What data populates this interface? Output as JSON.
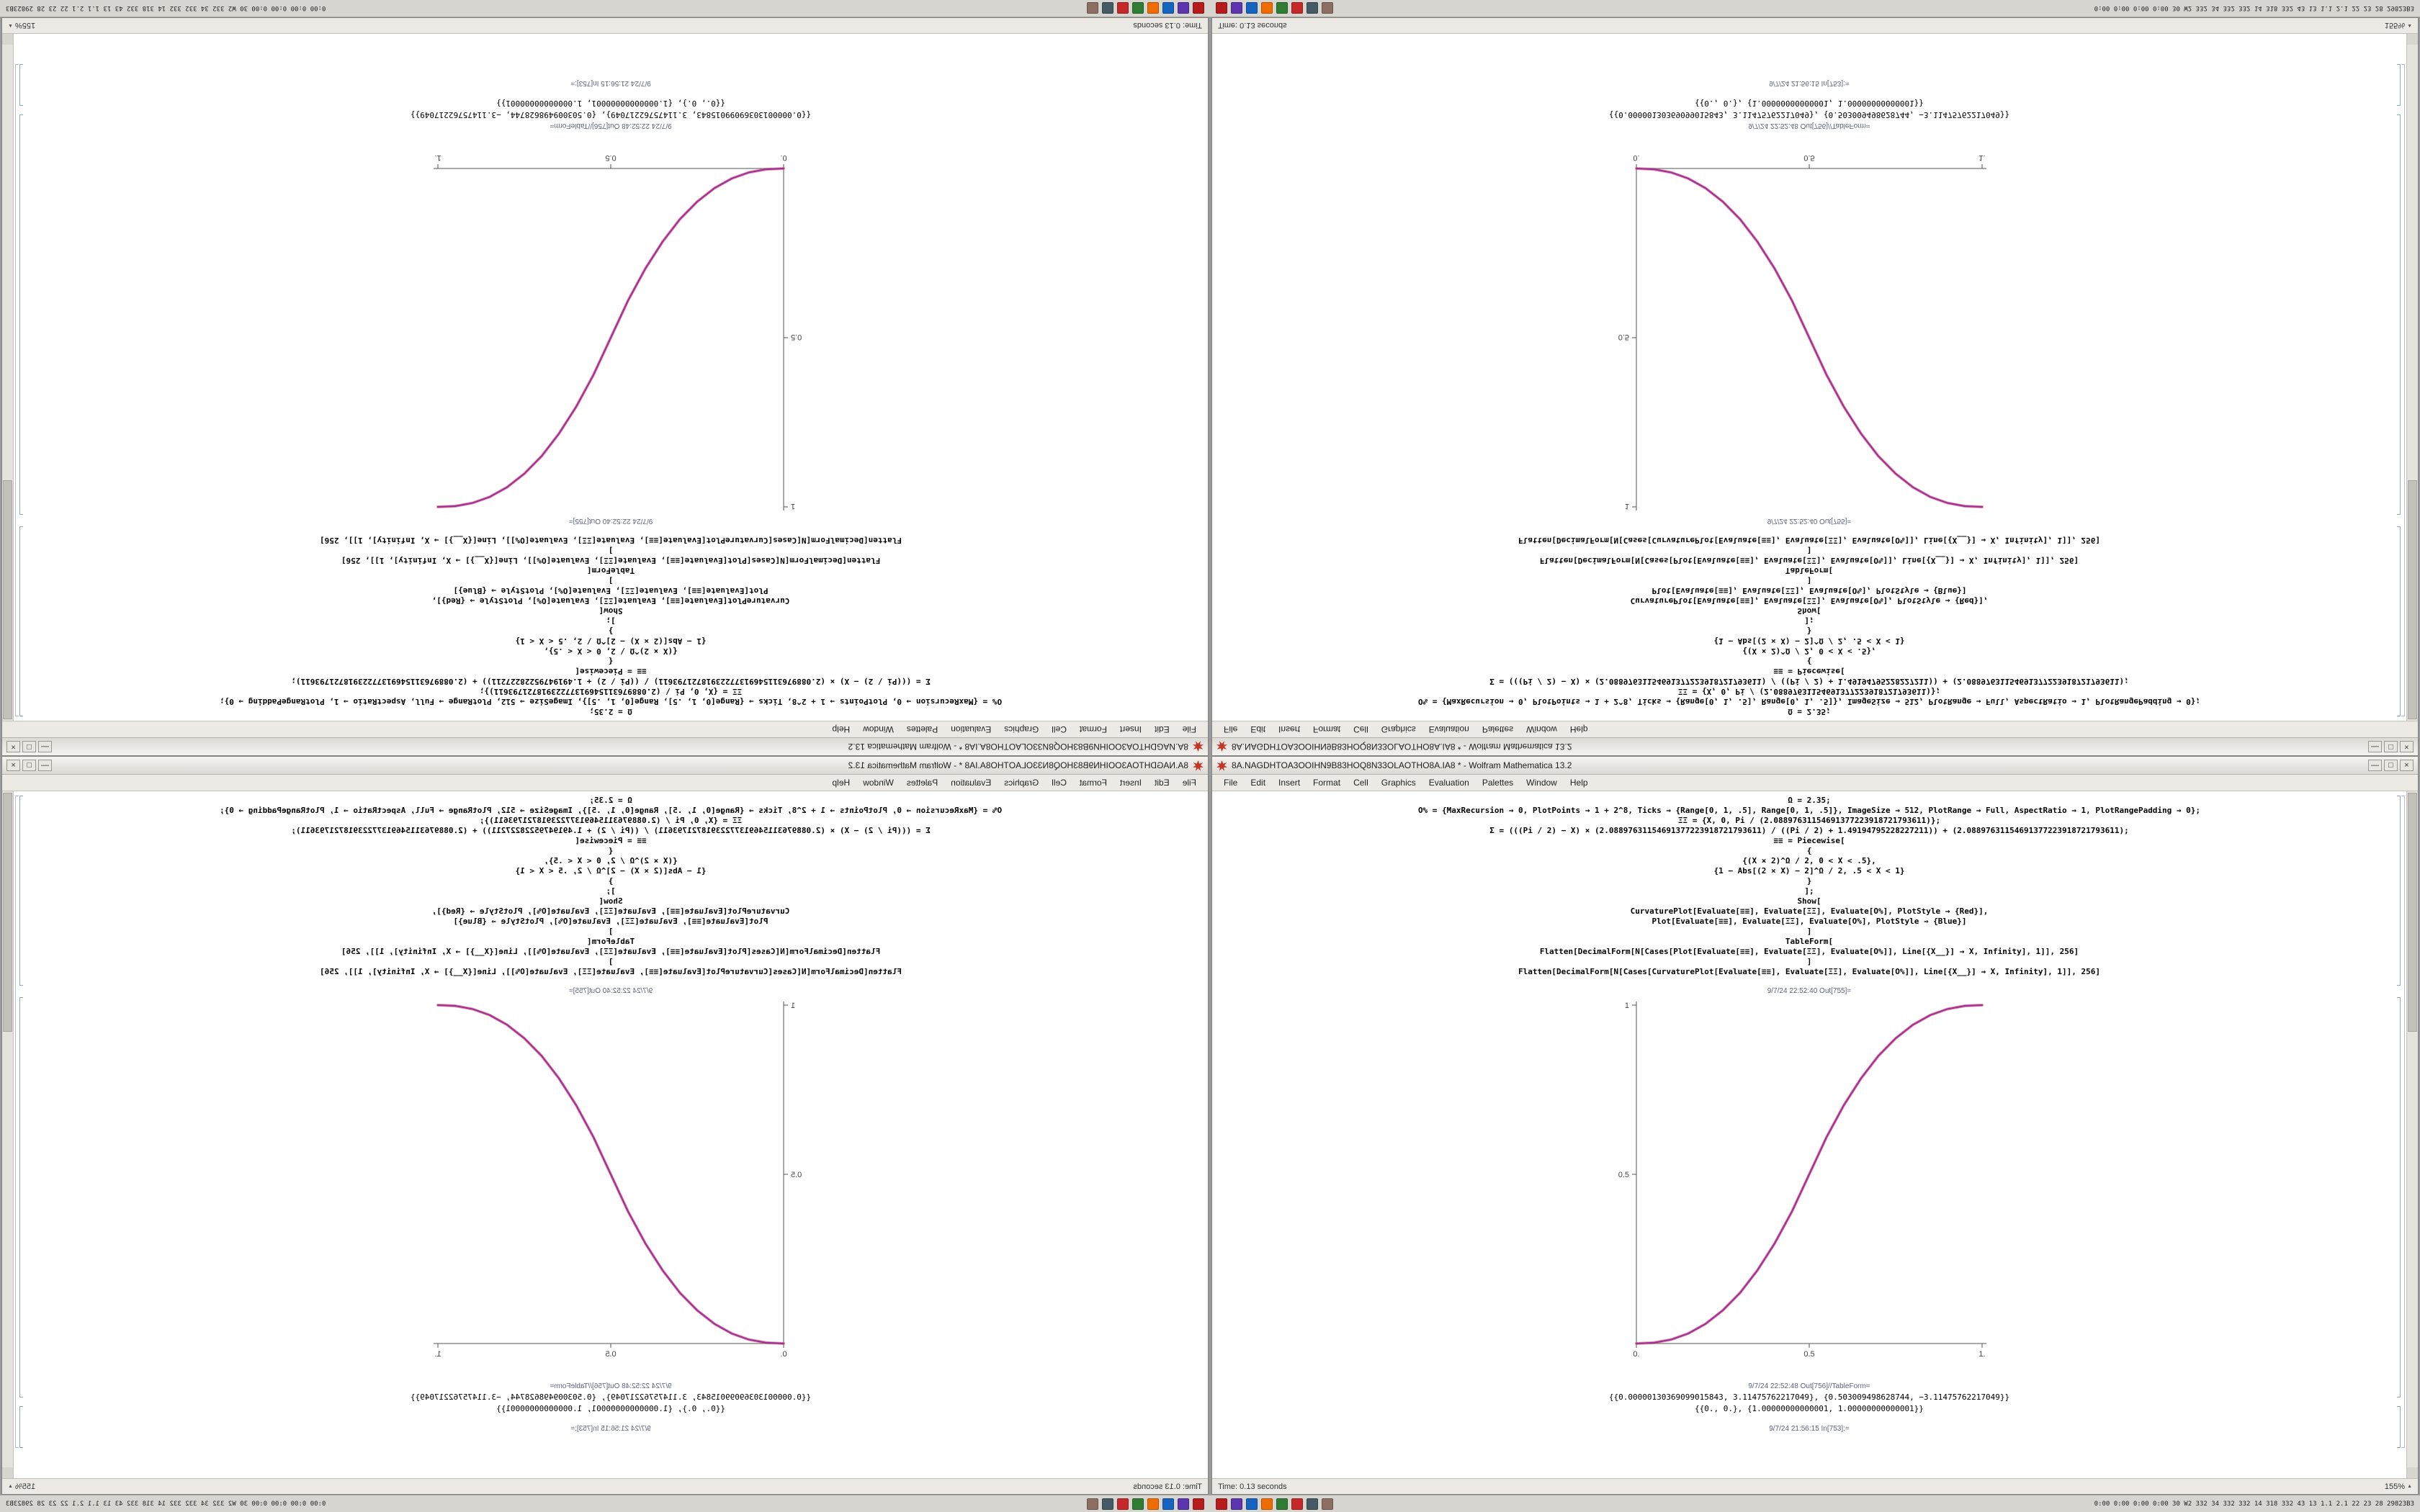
{
  "desktop": {
    "window": {
      "title": "8A.NAGDHTOA3OOIHN9B83HOQ8N33OLAOTHO8A.IA8 * - Wolfram Mathematica 13.2",
      "controls": {
        "minimize": "—",
        "maximize": "□",
        "close": "×"
      },
      "menu": [
        "File",
        "Edit",
        "Insert",
        "Format",
        "Cell",
        "Graphics",
        "Evaluation",
        "Palettes",
        "Window",
        "Help"
      ],
      "notebook": {
        "code_lines": [
          "Ω = 2.35;",
          "O% = {MaxRecursion → 0, PlotPoints → 1 + 2^8, Ticks → {Range[0, 1, .5], Range[0, 1, .5]}, ImageSize → 512, PlotRange → Full, AspectRatio → 1, PlotRangePadding → 0};",
          "ΞΞ = {X, 0, Pi / (2.08897631154691377223918721793611)};",
          "Σ = (((Pi / 2) − X) × (2.08897631154691377223918721793611) / ((Pi / 2) + 1.49194795228227211)) + (2.08897631154691377223918721793611);",
          "≡≡ = Piecewise[",
          "{",
          "{(X × 2)^Ω / 2, 0 < X < .5},",
          "{1 − Abs[(2 × X) − 2]^Ω / 2, .5 < X < 1}",
          "}",
          "];",
          "Show[",
          "CurvaturePlot[Evaluate[≡≡], Evaluate[ΞΞ], Evaluate[O%], PlotStyle → {Red}],",
          "Plot[Evaluate[≡≡], Evaluate[ΞΞ], Evaluate[O%], PlotStyle → {Blue}]",
          "]",
          "TableForm[",
          "Flatten[DecimalForm[N[Cases[Plot[Evaluate[≡≡], Evaluate[ΞΞ], Evaluate[O%]], Line[{X__}] → X, Infinity], 1]], 256]",
          "]",
          "Flatten[DecimalForm[N[Cases[CurvaturePlot[Evaluate[≡≡], Evaluate[ΞΞ], Evaluate[O%]], Line[{X__}] → X, Infinity], 1]], 256]"
        ],
        "out1_label": "9/7/24 22:52:40 Out[755]=",
        "out2_label": "9/7/24 22:52:48 Out[756]//TableForm=",
        "table_rows": [
          "{{0.00000130369099015843, 3.11475762217049}, {0.503009498628744, −3.11475762217049}}",
          "{{0., 0.}, {1.00000000000001, 1.00000000000001}}"
        ],
        "next_in_label": "9/7/24 21:56:15 In[753]:=",
        "plot": {
          "x_ticks": [
            "0.",
            "0.5",
            "1."
          ],
          "y_ticks": [
            "0.5",
            "1"
          ],
          "curve_color": "#a0309a",
          "series_styles": [
            "Red",
            "Blue"
          ],
          "plot_data": {
            "type": "line",
            "x": [
              0,
              0.1,
              0.2,
              0.3,
              0.4,
              0.5,
              0.6,
              0.7,
              0.8,
              0.9,
              1
            ],
            "y": [
              0,
              0.011,
              0.058,
              0.15,
              0.296,
              0.5,
              0.704,
              0.85,
              0.942,
              0.989,
              1
            ],
            "xlim": [
              0,
              1
            ],
            "ylim": [
              0,
              1
            ]
          }
        }
      },
      "status": {
        "time": "Time: 0.13 seconds",
        "magnification": "155%",
        "dropdown_arrow": "▲"
      }
    },
    "taskbar": {
      "icon_colors": [
        "#b71c1c",
        "#5e35b1",
        "#1565c0",
        "#ef6c00",
        "#2e7d32",
        "#c62828",
        "#455a64",
        "#8d6e63"
      ],
      "tray_text": "0:00 0:00 0:00 0:00  30 W2 332 34 332 332 14 318 332 43 13 1.1 2.1 22 23 28 29823B3"
    }
  }
}
